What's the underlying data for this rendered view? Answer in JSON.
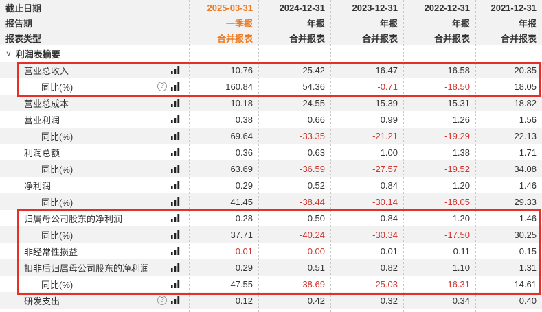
{
  "colors": {
    "accent_orange": "#f0781e",
    "negative_red": "#d0342c",
    "annotation_red": "#e52f28",
    "row_alt_bg": "#f2f2f2"
  },
  "header": {
    "rows": [
      {
        "label": "截止日期",
        "values": [
          "2025-03-31",
          "2024-12-31",
          "2023-12-31",
          "2022-12-31",
          "2021-12-31"
        ]
      },
      {
        "label": "报告期",
        "values": [
          "一季报",
          "年报",
          "年报",
          "年报",
          "年报"
        ]
      },
      {
        "label": "报表类型",
        "values": [
          "合并报表",
          "合并报表",
          "合并报表",
          "合并报表",
          "合并报表"
        ]
      }
    ]
  },
  "section": {
    "chevron": "∨",
    "title": "利润表摘要"
  },
  "rows": [
    {
      "label": "营业总收入",
      "values": [
        "10.76",
        "25.42",
        "16.47",
        "16.58",
        "20.35"
      ]
    },
    {
      "label": "同比(%)",
      "sub": true,
      "help": true,
      "values": [
        "160.84",
        "54.36",
        "-0.71",
        "-18.50",
        "18.05"
      ]
    },
    {
      "label": "营业总成本",
      "values": [
        "10.18",
        "24.55",
        "15.39",
        "15.31",
        "18.82"
      ]
    },
    {
      "label": "营业利润",
      "values": [
        "0.38",
        "0.66",
        "0.99",
        "1.26",
        "1.56"
      ]
    },
    {
      "label": "同比(%)",
      "sub": true,
      "values": [
        "69.64",
        "-33.35",
        "-21.21",
        "-19.29",
        "22.13"
      ]
    },
    {
      "label": "利润总额",
      "values": [
        "0.36",
        "0.63",
        "1.00",
        "1.38",
        "1.71"
      ]
    },
    {
      "label": "同比(%)",
      "sub": true,
      "values": [
        "63.69",
        "-36.59",
        "-27.57",
        "-19.52",
        "34.08"
      ]
    },
    {
      "label": "净利润",
      "values": [
        "0.29",
        "0.52",
        "0.84",
        "1.20",
        "1.46"
      ]
    },
    {
      "label": "同比(%)",
      "sub": true,
      "values": [
        "41.45",
        "-38.44",
        "-30.14",
        "-18.05",
        "29.33"
      ]
    },
    {
      "label": "归属母公司股东的净利润",
      "values": [
        "0.28",
        "0.50",
        "0.84",
        "1.20",
        "1.46"
      ]
    },
    {
      "label": "同比(%)",
      "sub": true,
      "values": [
        "37.71",
        "-40.24",
        "-30.34",
        "-17.50",
        "30.25"
      ]
    },
    {
      "label": "非经常性损益",
      "underline": true,
      "values": [
        "-0.01",
        "-0.00",
        "0.01",
        "0.11",
        "0.15"
      ]
    },
    {
      "label": "扣非后归属母公司股东的净利润",
      "values": [
        "0.29",
        "0.51",
        "0.82",
        "1.10",
        "1.31"
      ]
    },
    {
      "label": "同比(%)",
      "sub": true,
      "values": [
        "47.55",
        "-38.69",
        "-25.03",
        "-16.31",
        "14.61"
      ]
    },
    {
      "label": "研发支出",
      "help": true,
      "values": [
        "0.12",
        "0.42",
        "0.32",
        "0.34",
        "0.40"
      ]
    }
  ]
}
